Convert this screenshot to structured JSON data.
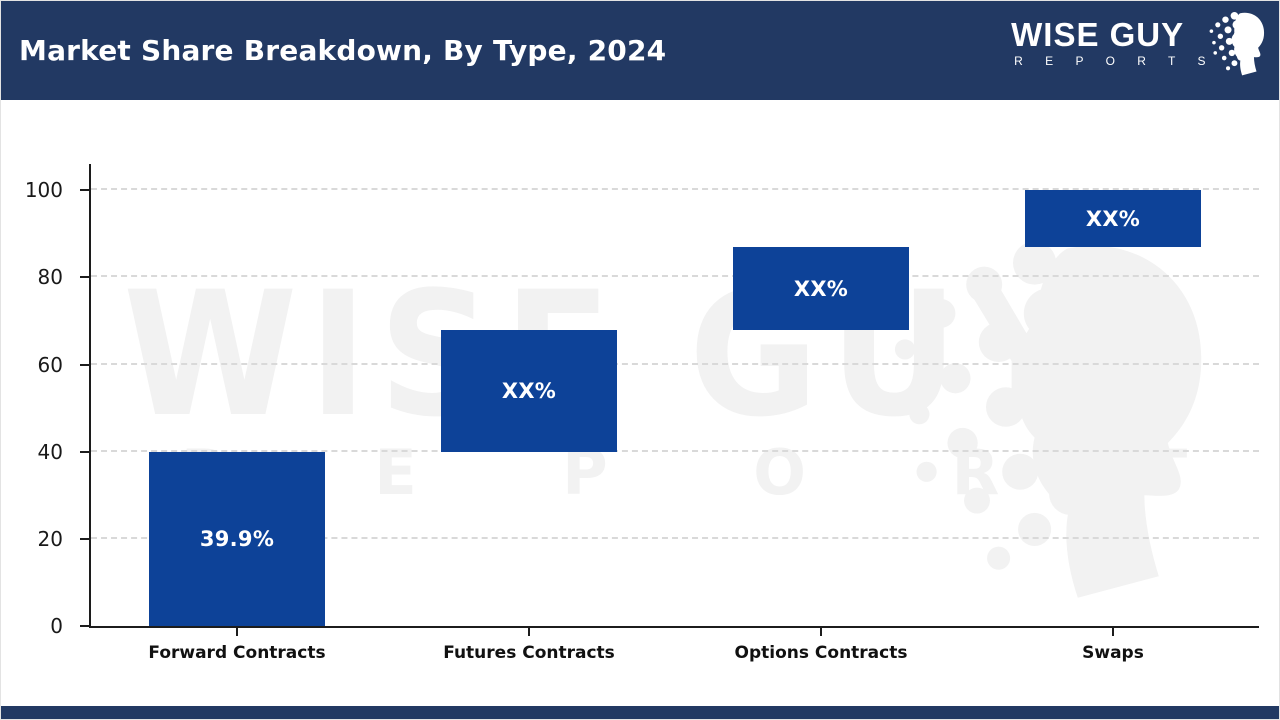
{
  "header": {
    "title": "Market Share Breakdown, By Type, 2024",
    "bg_color": "#223963",
    "logo": {
      "line1": "WISE GUY",
      "line2": "R E P O R T S"
    }
  },
  "watermark": {
    "line1": "WISE GUY",
    "line2": "R E P O R T S"
  },
  "chart_data": {
    "type": "bar",
    "subtype": "waterfall",
    "title": "Market Share Breakdown, By Type, 2024",
    "categories": [
      "Forward Contracts",
      "Futures Contracts",
      "Options Contracts",
      "Swaps"
    ],
    "segments": [
      {
        "category": "Forward Contracts",
        "start": 0,
        "end": 39.9,
        "label": "39.9%"
      },
      {
        "category": "Futures Contracts",
        "start": 39.9,
        "end": 67.9,
        "label": "XX%"
      },
      {
        "category": "Options Contracts",
        "start": 67.9,
        "end": 86.9,
        "label": "XX%"
      },
      {
        "category": "Swaps",
        "start": 86.9,
        "end": 100,
        "label": "XX%"
      }
    ],
    "yticks": [
      0,
      20,
      40,
      60,
      80,
      100
    ],
    "ylim": [
      0,
      106
    ],
    "xlabel": "",
    "ylabel": "",
    "grid": "horizontal-dashed",
    "legend": false,
    "bar_color": "#0d4298",
    "bar_label_color": "#ffffff",
    "axis_color": "#1c1c1c",
    "gridline_color": "#d9d9d9"
  }
}
